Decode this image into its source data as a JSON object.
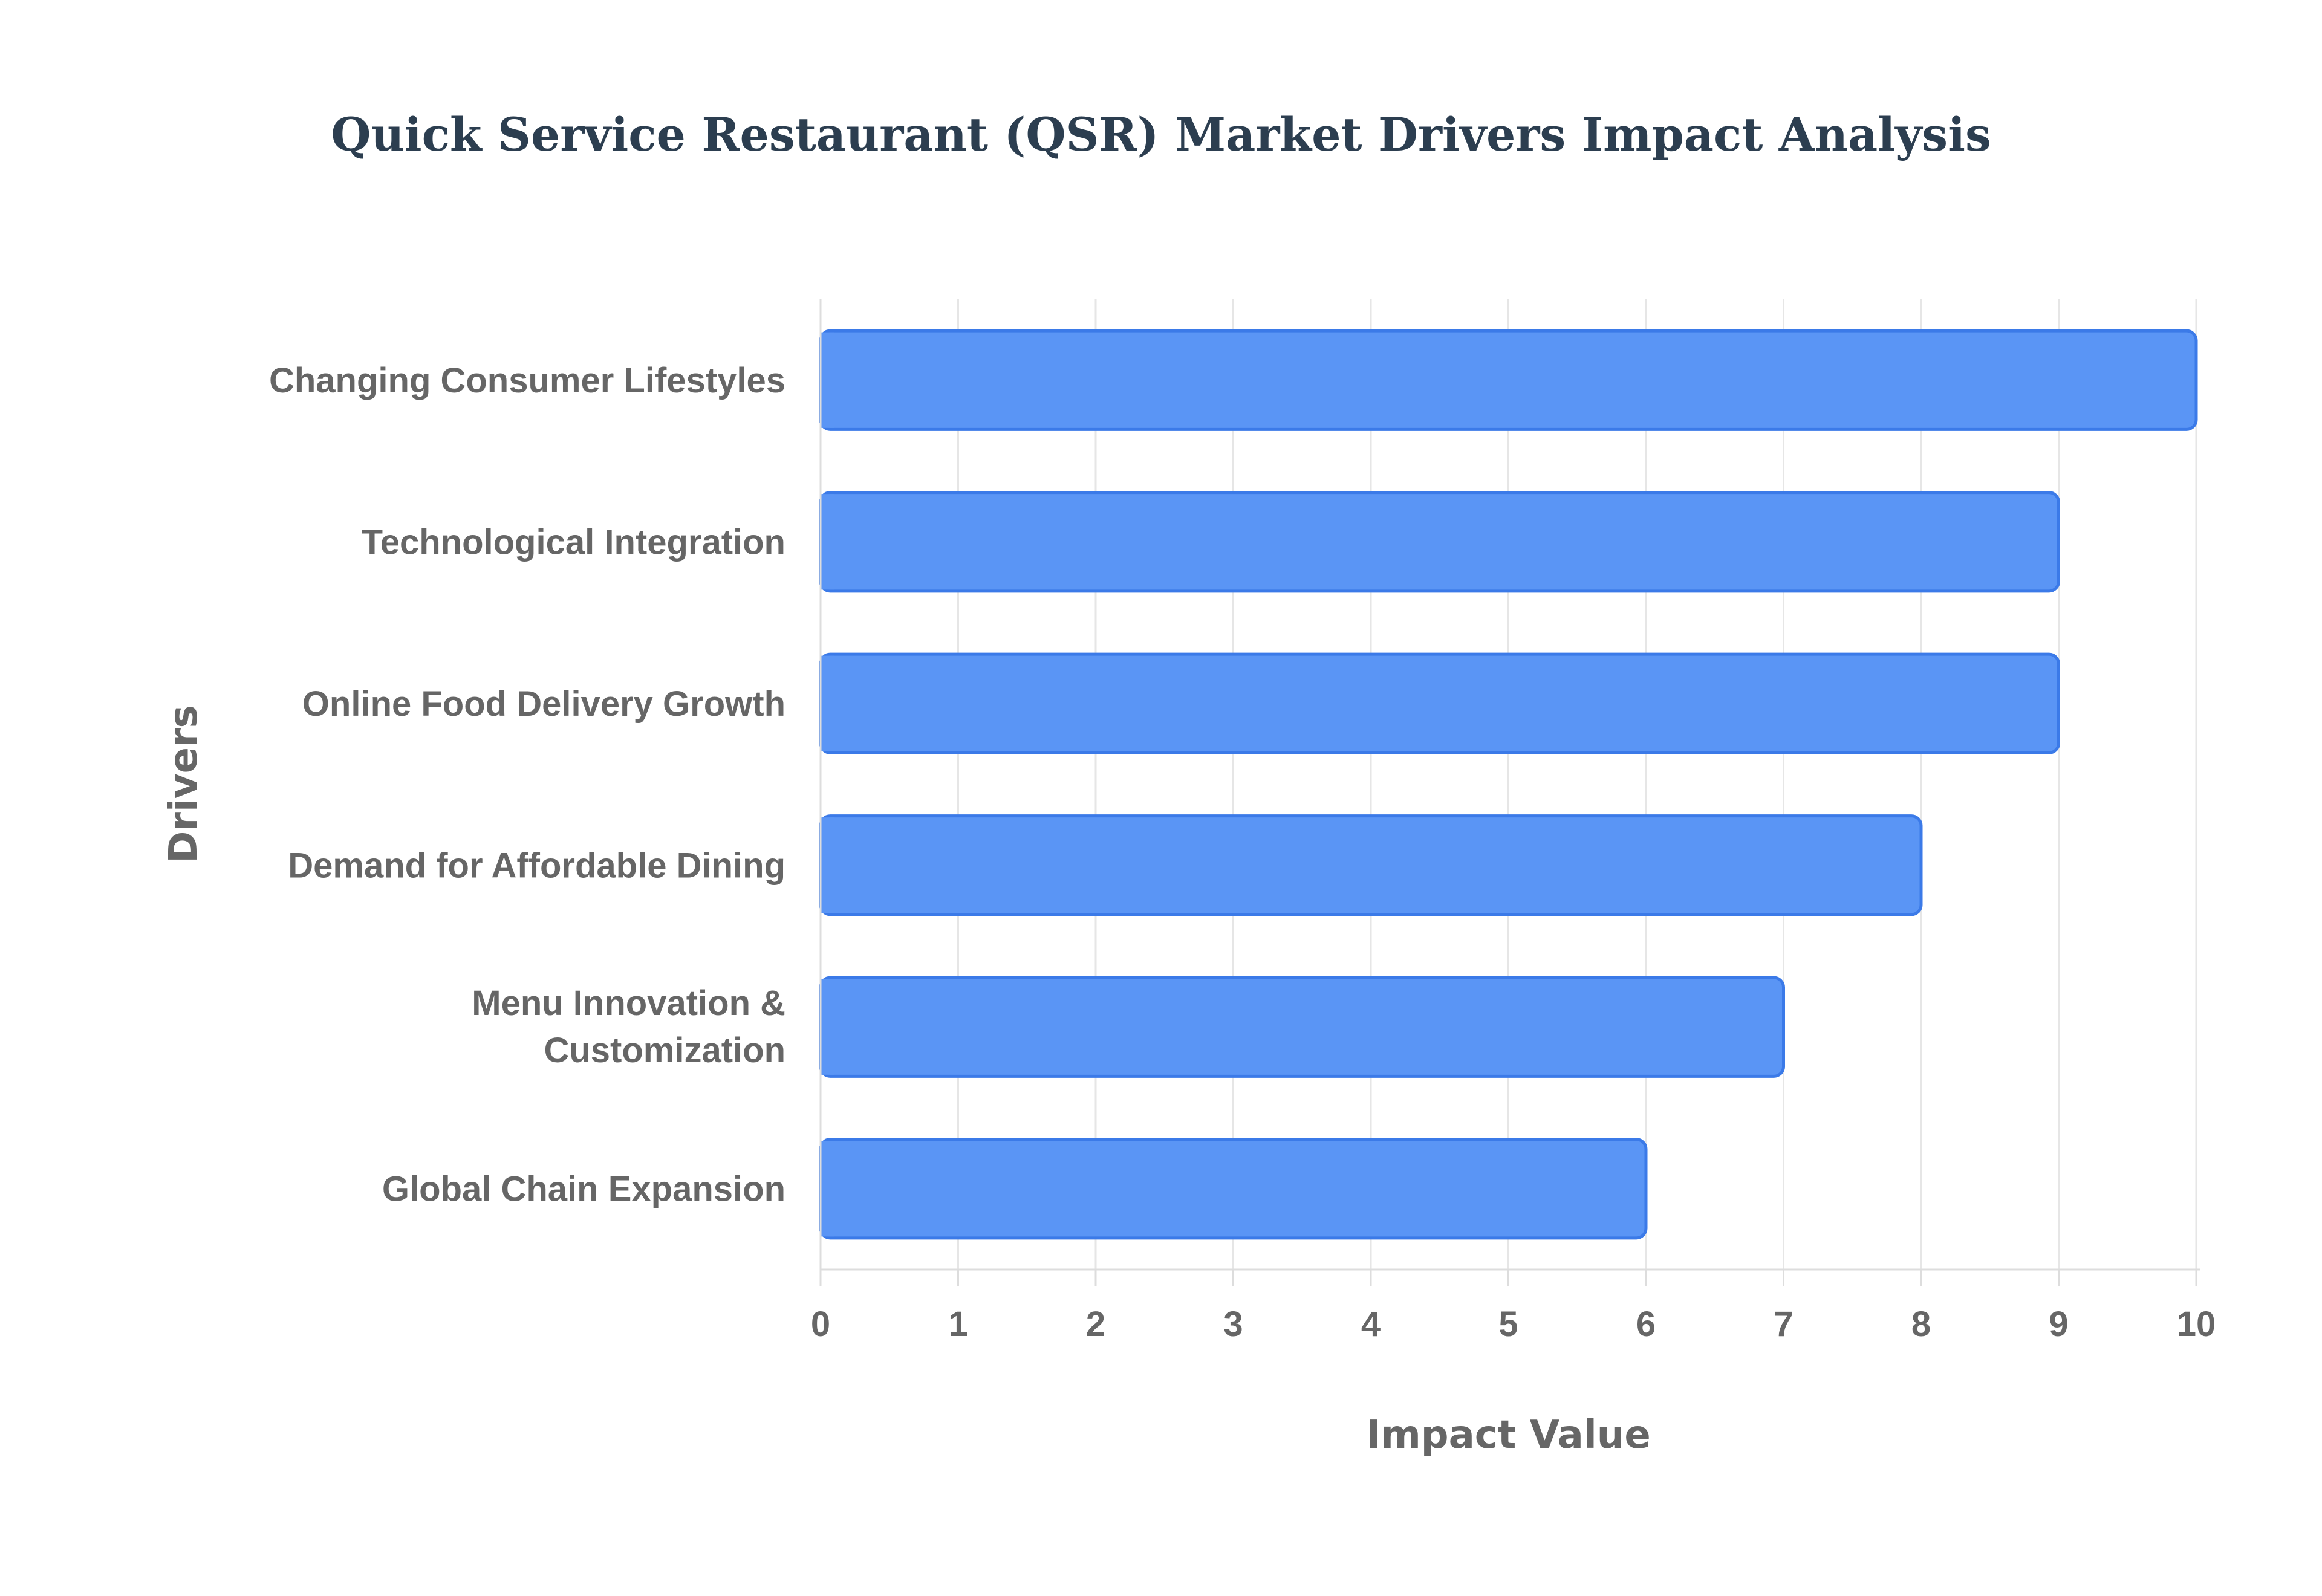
{
  "chart_data": {
    "type": "bar",
    "orientation": "horizontal",
    "title": "Quick Service Restaurant (QSR) Market Drivers Impact Analysis",
    "xlabel": "Impact Value",
    "ylabel": "Drivers",
    "categories": [
      "Changing Consumer Lifestyles",
      "Technological Integration",
      "Online Food Delivery Growth",
      "Demand for Affordable Dining",
      "Menu Innovation & Customization",
      "Global Chain Expansion"
    ],
    "values": [
      10,
      9,
      9,
      8,
      7,
      6
    ],
    "xlim": [
      0,
      10
    ],
    "xticks": [
      "0",
      "1",
      "2",
      "3",
      "4",
      "5",
      "6",
      "7",
      "8",
      "9",
      "10"
    ],
    "grid": true,
    "legend": "none",
    "colors": {
      "bar_fill": "#5a95f5",
      "bar_stroke": "#3b7ae8",
      "grid": "#e6e6e6",
      "axis": "#dddddd",
      "text": "#666666",
      "title": "#2c3e50"
    }
  }
}
